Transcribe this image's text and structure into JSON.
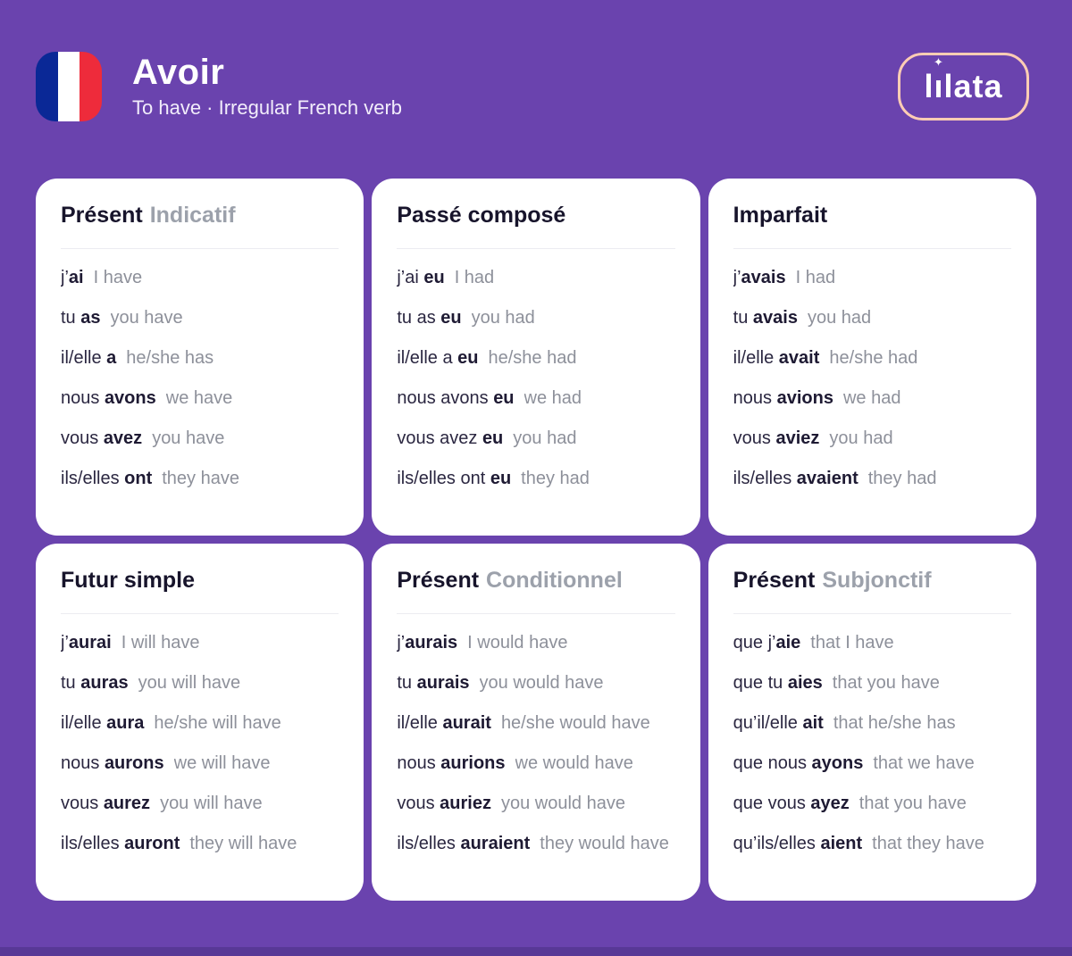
{
  "colors": {
    "background": "#6A43AE",
    "bottom_strip": "#583896",
    "card_background": "#FFFFFF",
    "flag_blue": "#0A2896",
    "flag_red": "#EE2B3B",
    "brand_border": "#FFCDB4",
    "title_dark": "#17142B",
    "mood_gray": "#9CA1AB",
    "translation_gray": "#8D909A"
  },
  "header": {
    "title": "Avoir",
    "subtitle": "To have · Irregular French verb",
    "flag": "france-flag"
  },
  "brand": {
    "pre": "l",
    "i": "ı",
    "sparkle": "✦",
    "post": "lata",
    "full_name": "lilata"
  },
  "cards": [
    {
      "title": "Présent",
      "mood": "Indicatif",
      "rows": [
        {
          "fr_pre": "j’",
          "fr_bold": "ai",
          "en": "I have"
        },
        {
          "fr_pre": "tu ",
          "fr_bold": "as",
          "en": "you have"
        },
        {
          "fr_pre": "il/elle ",
          "fr_bold": "a",
          "en": "he/she has"
        },
        {
          "fr_pre": "nous ",
          "fr_bold": "avons",
          "en": "we have"
        },
        {
          "fr_pre": "vous ",
          "fr_bold": "avez",
          "en": "you have"
        },
        {
          "fr_pre": "ils/elles ",
          "fr_bold": "ont",
          "en": "they have"
        }
      ]
    },
    {
      "title": "Passé composé",
      "mood": "",
      "rows": [
        {
          "fr_pre": "j’ai ",
          "fr_bold": "eu",
          "en": "I had"
        },
        {
          "fr_pre": "tu as ",
          "fr_bold": "eu",
          "en": "you had"
        },
        {
          "fr_pre": "il/elle a ",
          "fr_bold": "eu",
          "en": "he/she had"
        },
        {
          "fr_pre": "nous avons ",
          "fr_bold": "eu",
          "en": "we had"
        },
        {
          "fr_pre": "vous avez ",
          "fr_bold": "eu",
          "en": "you had"
        },
        {
          "fr_pre": "ils/elles ont ",
          "fr_bold": "eu",
          "en": "they had"
        }
      ]
    },
    {
      "title": "Imparfait",
      "mood": "",
      "rows": [
        {
          "fr_pre": "j’",
          "fr_bold": "avais",
          "en": "I had"
        },
        {
          "fr_pre": "tu ",
          "fr_bold": "avais",
          "en": "you had"
        },
        {
          "fr_pre": "il/elle ",
          "fr_bold": "avait",
          "en": "he/she had"
        },
        {
          "fr_pre": "nous ",
          "fr_bold": "avions",
          "en": "we had"
        },
        {
          "fr_pre": "vous ",
          "fr_bold": "aviez",
          "en": "you had"
        },
        {
          "fr_pre": "ils/elles ",
          "fr_bold": "avaient",
          "en": "they had"
        }
      ]
    },
    {
      "title": "Futur simple",
      "mood": "",
      "rows": [
        {
          "fr_pre": "j’",
          "fr_bold": "aurai",
          "en": "I will have"
        },
        {
          "fr_pre": "tu ",
          "fr_bold": "auras",
          "en": "you will have"
        },
        {
          "fr_pre": "il/elle ",
          "fr_bold": "aura",
          "en": "he/she will have"
        },
        {
          "fr_pre": "nous ",
          "fr_bold": "aurons",
          "en": "we will have"
        },
        {
          "fr_pre": "vous ",
          "fr_bold": "aurez",
          "en": "you will have"
        },
        {
          "fr_pre": "ils/elles ",
          "fr_bold": "auront",
          "en": "they will have"
        }
      ]
    },
    {
      "title": "Présent",
      "mood": "Conditionnel",
      "rows": [
        {
          "fr_pre": "j’",
          "fr_bold": "aurais",
          "en": "I would have"
        },
        {
          "fr_pre": "tu ",
          "fr_bold": "aurais",
          "en": "you would have"
        },
        {
          "fr_pre": "il/elle ",
          "fr_bold": "aurait",
          "en": "he/she would have"
        },
        {
          "fr_pre": "nous ",
          "fr_bold": "aurions",
          "en": "we would have"
        },
        {
          "fr_pre": "vous ",
          "fr_bold": "auriez",
          "en": "you would have"
        },
        {
          "fr_pre": "ils/elles ",
          "fr_bold": "auraient",
          "en": "they would have"
        }
      ]
    },
    {
      "title": "Présent",
      "mood": "Subjonctif",
      "rows": [
        {
          "fr_pre": "que j’",
          "fr_bold": "aie",
          "en": "that I have"
        },
        {
          "fr_pre": "que tu ",
          "fr_bold": "aies",
          "en": "that you have"
        },
        {
          "fr_pre": "qu’il/elle ",
          "fr_bold": "ait",
          "en": "that he/she has"
        },
        {
          "fr_pre": "que nous ",
          "fr_bold": "ayons",
          "en": "that we have"
        },
        {
          "fr_pre": "que vous ",
          "fr_bold": "ayez",
          "en": "that you have"
        },
        {
          "fr_pre": "qu’ils/elles ",
          "fr_bold": "aient",
          "en": "that they have"
        }
      ]
    }
  ]
}
